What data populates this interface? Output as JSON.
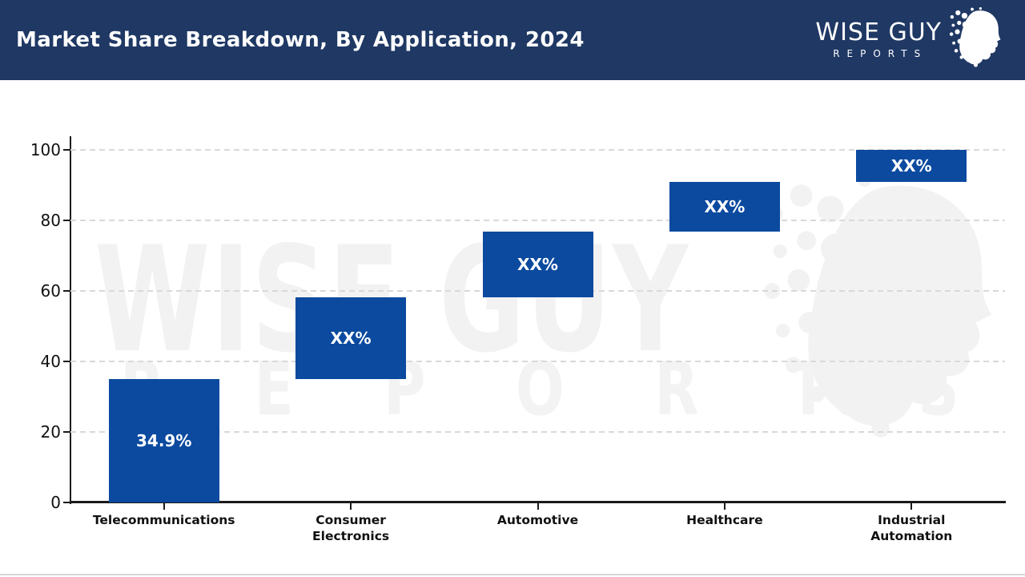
{
  "header": {
    "title": "Market Share Breakdown, By Application, 2024",
    "logo": {
      "line1": "WISE GUY",
      "line2": "REPORTS"
    }
  },
  "watermark": {
    "line1": "WISE GUY",
    "line2": "R E P O R T S"
  },
  "chart_data": {
    "type": "bar",
    "subtype": "waterfall",
    "title": "Market Share Breakdown, By Application, 2024",
    "xlabel": "",
    "ylabel": "",
    "ylim": [
      0,
      100
    ],
    "yticks": [
      0,
      20,
      40,
      60,
      80,
      100
    ],
    "grid": "horizontal-dashed",
    "legend": "none",
    "categories": [
      "Telecommunications",
      "Consumer\nElectronics",
      "Automotive",
      "Healthcare",
      "Industrial\nAutomation"
    ],
    "segments": [
      {
        "category": "Telecommunications",
        "start": 0,
        "end": 34.9,
        "value": 34.9,
        "label": "34.9%"
      },
      {
        "category": "Consumer\nElectronics",
        "start": 34.9,
        "end": 58.2,
        "value": 23.3,
        "label": "XX%"
      },
      {
        "category": "Automotive",
        "start": 58.2,
        "end": 76.8,
        "value": 18.6,
        "label": "XX%"
      },
      {
        "category": "Healthcare",
        "start": 76.8,
        "end": 90.9,
        "value": 14.1,
        "label": "XX%"
      },
      {
        "category": "Industrial\nAutomation",
        "start": 90.9,
        "end": 100,
        "value": 9.1,
        "label": "XX%"
      }
    ]
  },
  "colors": {
    "header_bg": "#1f3864",
    "bar": "#0b4a9f",
    "bar_label": "#ffffff",
    "grid": "#d9d9d9",
    "axis": "#1a1a1a",
    "watermark": "#f2f2f2"
  }
}
